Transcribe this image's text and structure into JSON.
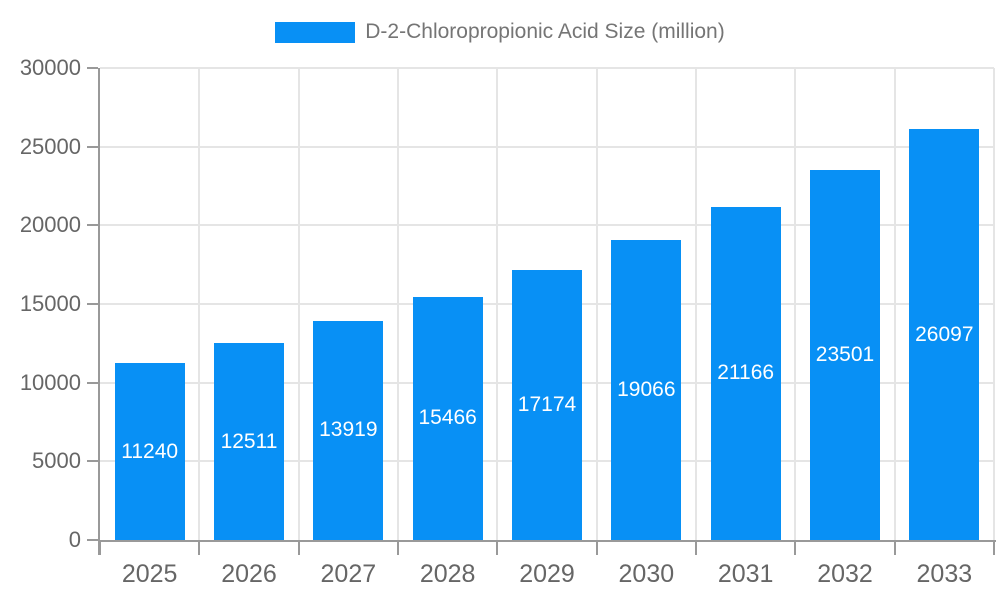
{
  "colors": {
    "bar": "#0890f5",
    "grid": "#e5e5e5",
    "axis": "#999999",
    "tick_text": "#666666",
    "legend_text": "#757575",
    "bar_label_text": "#ffffff",
    "background": "#ffffff"
  },
  "chart_data": {
    "type": "bar",
    "legend_label": "D-2-Chloropropionic Acid Size (million)",
    "categories": [
      "2025",
      "2026",
      "2027",
      "2028",
      "2029",
      "2030",
      "2031",
      "2032",
      "2033"
    ],
    "values": [
      11240,
      12511,
      13919,
      15466,
      17174,
      19066,
      21166,
      23501,
      26097
    ],
    "series": [
      {
        "name": "D-2-Chloropropionic Acid Size (million)",
        "values": [
          11240,
          12511,
          13919,
          15466,
          17174,
          19066,
          21166,
          23501,
          26097
        ]
      }
    ],
    "title": "",
    "xlabel": "",
    "ylabel": "",
    "ylim": [
      0,
      30000
    ],
    "ytick_step": 5000,
    "ytick_labels": [
      "0",
      "5000",
      "10000",
      "15000",
      "20000",
      "25000",
      "30000"
    ],
    "grid": true,
    "legend_position": "top",
    "value_labels": "inside-center"
  }
}
